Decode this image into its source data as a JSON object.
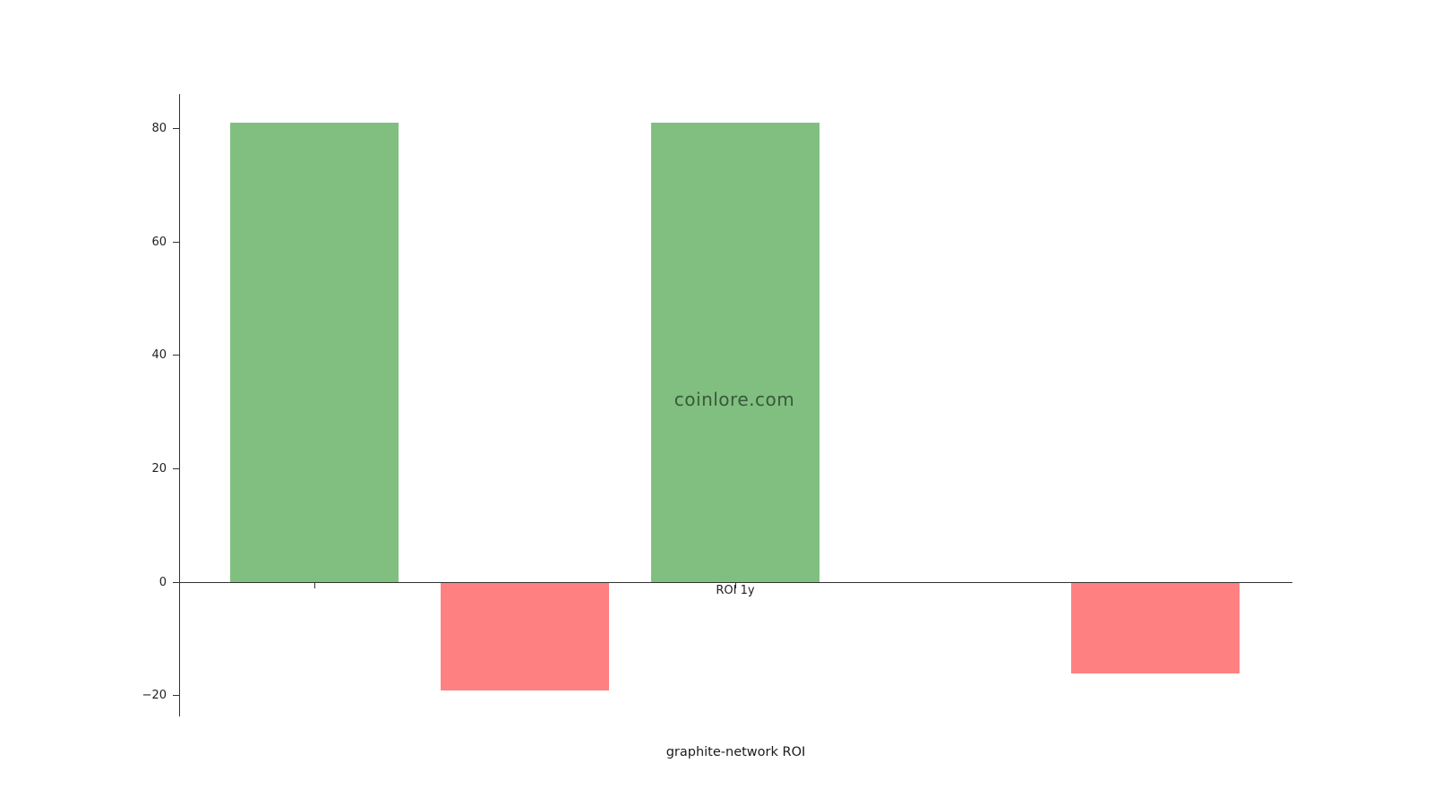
{
  "chart_data": {
    "type": "bar",
    "title": "graphite-network ROI",
    "watermark": "coinlore.com",
    "categories": [
      "",
      "",
      "ROI 1y",
      "",
      ""
    ],
    "values": [
      81,
      -19,
      81,
      0,
      -16
    ],
    "positive_color": "#80bf80",
    "negative_color": "#ff8080",
    "axis_color": "#333333",
    "text_color": "#222222",
    "yticks": [
      80,
      60,
      40,
      20,
      0,
      -20
    ],
    "ytick_labels": [
      "80",
      "60",
      "40",
      "20",
      "0",
      "−20"
    ],
    "xticks": [
      {
        "position": 0,
        "label": ""
      },
      {
        "position": 2,
        "label": "ROI 1y"
      }
    ],
    "ylim": [
      -23.8,
      86.0
    ],
    "xlabel": "",
    "ylabel": "",
    "grid": false,
    "legend": null
  }
}
